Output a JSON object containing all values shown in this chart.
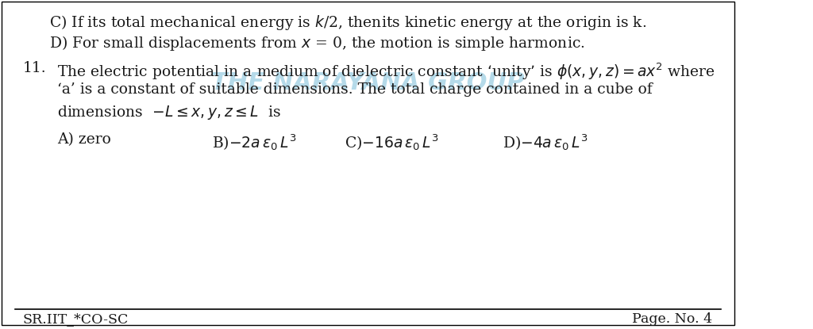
{
  "bg_color": "#ffffff",
  "border_color": "#000000",
  "watermark_text": "THE NARAYANA GROUP",
  "watermark_color": "#a8d4e6",
  "line_C": "C) If its total mechanical energy is $k$/2, thenits kinetic energy at the origin is k.",
  "line_D": "D) For small displacements from $x$ = 0, the motion is simple harmonic.",
  "q_number": "11.",
  "q_line1": "The electric potential in a medium of dielectric constant ‘unity’ is $\\phi(x,y,z)=ax^2$ where",
  "q_line2": "‘a’ is a constant of suitable dimensions. The total charge contained in a cube of",
  "q_line3": "dimensions $-L\\leq x,y,z\\leq L$  is",
  "opt_A": "A) zero",
  "opt_B": "B)−2a $\\epsilon_0$ L$^3$",
  "opt_C": "C)−16a $\\epsilon_0$ L$^3$",
  "opt_D": "D)−4a $\\epsilon_0$ L$^3$",
  "footer_left": "SR.IIT_*CO-SC",
  "footer_right": "Page. No. 4",
  "text_color": "#1a1a1a",
  "footer_line_color": "#000000"
}
